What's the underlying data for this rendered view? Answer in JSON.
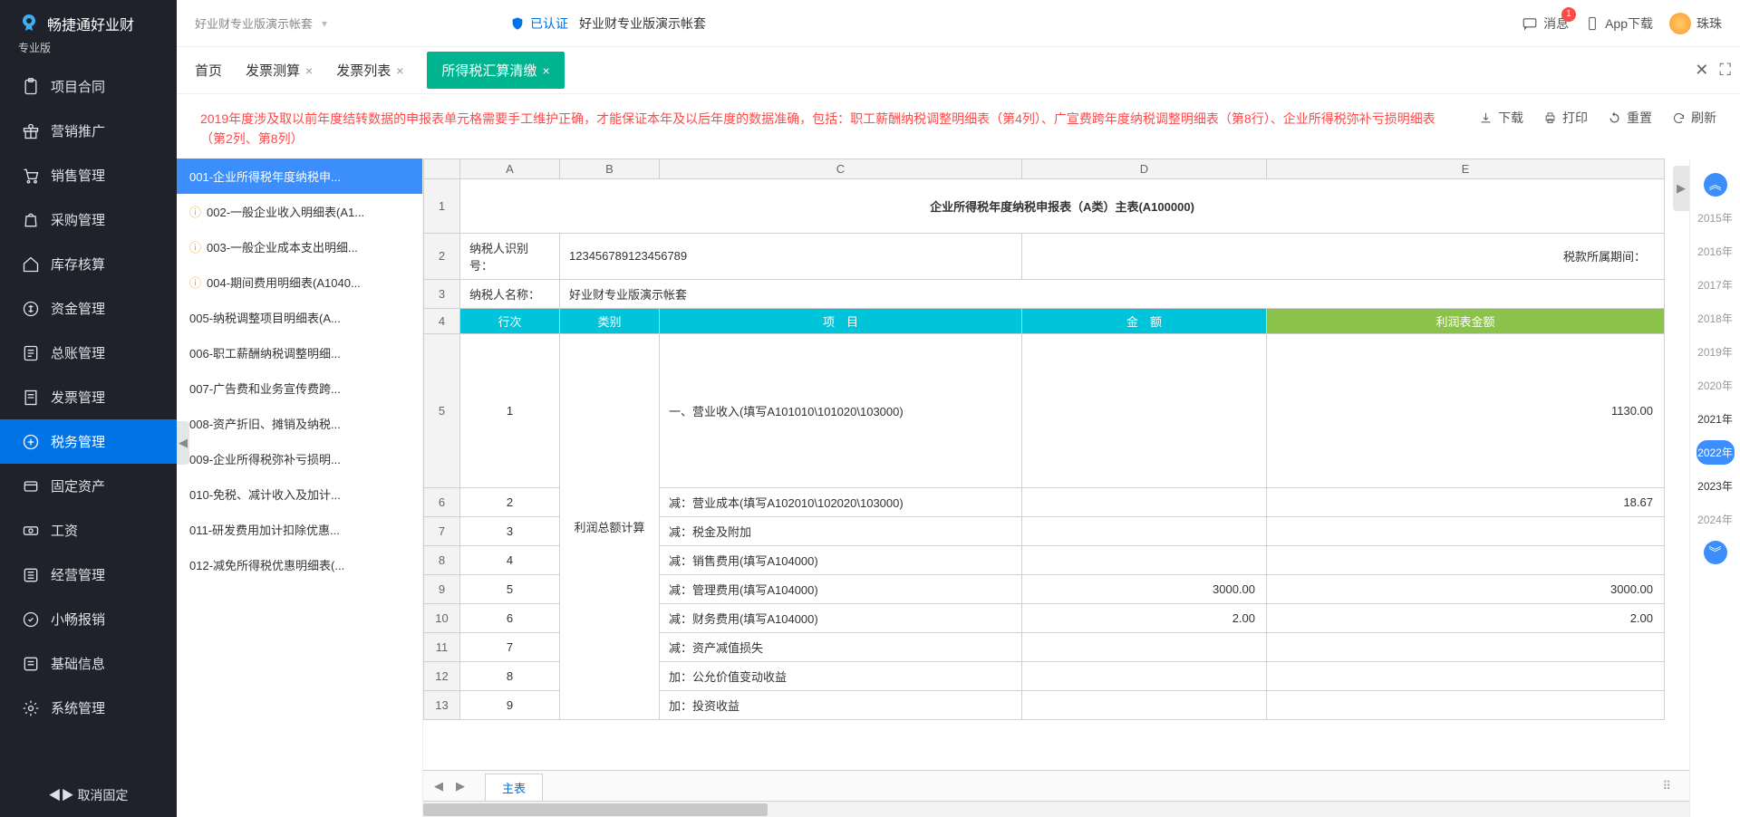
{
  "brand": {
    "name": "畅捷通好业财",
    "edition": "专业版"
  },
  "sidebar": {
    "items": [
      {
        "label": "项目合同",
        "icon": "clipboard"
      },
      {
        "label": "营销推广",
        "icon": "gift"
      },
      {
        "label": "销售管理",
        "icon": "cart"
      },
      {
        "label": "采购管理",
        "icon": "bag"
      },
      {
        "label": "库存核算",
        "icon": "home"
      },
      {
        "label": "资金管理",
        "icon": "coin"
      },
      {
        "label": "总账管理",
        "icon": "ledger"
      },
      {
        "label": "发票管理",
        "icon": "invoice"
      },
      {
        "label": "税务管理",
        "icon": "tax",
        "active": true
      },
      {
        "label": "固定资产",
        "icon": "asset"
      },
      {
        "label": "工资",
        "icon": "salary"
      },
      {
        "label": "经营管理",
        "icon": "manage"
      },
      {
        "label": "小畅报销",
        "icon": "expense"
      },
      {
        "label": "基础信息",
        "icon": "info"
      },
      {
        "label": "系统管理",
        "icon": "system"
      }
    ],
    "footer": "取消固定"
  },
  "topbar": {
    "account_placeholder": "好业财专业版演示帐套",
    "verified": "已认证",
    "account_title": "好业财专业版演示帐套",
    "message": "消息",
    "badge": "1",
    "app": "App下载",
    "user": "珠珠"
  },
  "tabs": [
    {
      "label": "首页",
      "closable": false
    },
    {
      "label": "发票测算",
      "closable": true
    },
    {
      "label": "发票列表",
      "closable": true
    },
    {
      "label": "所得税汇算清缴",
      "closable": true,
      "active": true
    }
  ],
  "warning": "2019年度涉及取以前年度结转数据的申报表单元格需要手工维护正确，才能保证本年及以后年度的数据准确，包括：职工薪酬纳税调整明细表（第4列）、广宣费跨年度纳税调整明细表（第8行）、企业所得税弥补亏损明细表（第2列、第8列）",
  "toolbar": {
    "download": "下载",
    "print": "打印",
    "reset": "重置",
    "refresh": "刷新"
  },
  "forms": [
    {
      "label": "001-企业所得税年度纳税申...",
      "selected": true
    },
    {
      "label": "002-一般企业收入明细表(A1...",
      "q": true
    },
    {
      "label": "003-一般企业成本支出明细...",
      "q": true
    },
    {
      "label": "004-期间费用明细表(A1040...",
      "q": true
    },
    {
      "label": "005-纳税调整项目明细表(A..."
    },
    {
      "label": "006-职工薪酬纳税调整明细..."
    },
    {
      "label": "007-广告费和业务宣传费跨..."
    },
    {
      "label": "008-资产折旧、摊销及纳税..."
    },
    {
      "label": "009-企业所得税弥补亏损明..."
    },
    {
      "label": "010-免税、减计收入及加计..."
    },
    {
      "label": "011-研发费用加计扣除优惠..."
    },
    {
      "label": "012-减免所得税优惠明细表(..."
    }
  ],
  "sheet": {
    "cols": [
      "",
      "A",
      "B",
      "C",
      "D",
      "E"
    ],
    "title": "企业所得税年度纳税申报表（A类）主表(A100000)",
    "taxid_label": "纳税人识别号：",
    "taxid_value": "123456789123456789",
    "period_label": "税款所属期间：",
    "taxpayer_label": "纳税人名称：",
    "taxpayer_value": "好业财专业版演示帐套",
    "headers": {
      "a": "行次",
      "b": "类别",
      "c": "项　目",
      "d": "金　额",
      "e": "利润表金额"
    },
    "group_label": "利润总额计算",
    "rows": [
      {
        "n": "5",
        "a": "1",
        "c": "一、营业收入(填写A101010\\101020\\103000)",
        "d": "",
        "e": "1130.00",
        "tall": true
      },
      {
        "n": "6",
        "a": "2",
        "c": "减：营业成本(填写A102010\\102020\\103000)",
        "d": "",
        "e": "18.67"
      },
      {
        "n": "7",
        "a": "3",
        "c": "减：税金及附加",
        "d": "",
        "e": ""
      },
      {
        "n": "8",
        "a": "4",
        "c": "减：销售费用(填写A104000)",
        "d": "",
        "e": ""
      },
      {
        "n": "9",
        "a": "5",
        "c": "减：管理费用(填写A104000)",
        "d": "3000.00",
        "e": "3000.00"
      },
      {
        "n": "10",
        "a": "6",
        "c": "减：财务费用(填写A104000)",
        "d": "2.00",
        "e": "2.00"
      },
      {
        "n": "11",
        "a": "7",
        "c": "减：资产减值损失",
        "d": "",
        "e": ""
      },
      {
        "n": "12",
        "a": "8",
        "c": "加：公允价值变动收益",
        "d": "",
        "e": ""
      },
      {
        "n": "13",
        "a": "9",
        "c": "加：投资收益",
        "d": "",
        "e": ""
      }
    ],
    "tab": "主表"
  },
  "years": [
    "2015年",
    "2016年",
    "2017年",
    "2018年",
    "2019年",
    "2020年",
    "2021年",
    "2022年",
    "2023年",
    "2024年"
  ],
  "year_bold": [
    "2021年",
    "2023年"
  ],
  "year_active": "2022年"
}
